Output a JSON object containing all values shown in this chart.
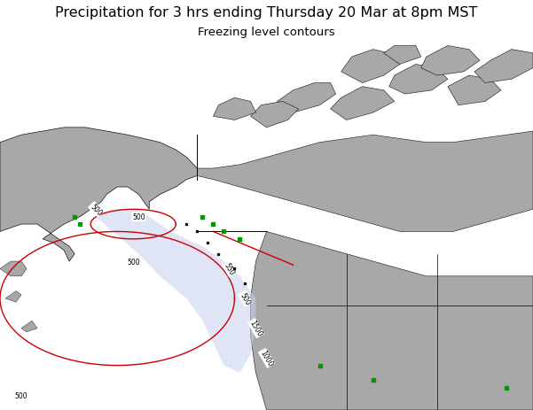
{
  "title": "Precipitation for 3 hrs ending Thursday 20 Mar at 8pm MST",
  "subtitle": "Freezing level contours",
  "title_fontsize": 11.5,
  "subtitle_fontsize": 9.5,
  "background_color": "#ffffff",
  "ocean_color": "#d8daf2",
  "land_color_base": "#aaaaaa",
  "land_color_light": "#c8c8c8",
  "contour_color": "#cc0000",
  "header_bg": "#ffffff",
  "thin_line": "#000000",
  "precip_light": "#c8d0f0"
}
